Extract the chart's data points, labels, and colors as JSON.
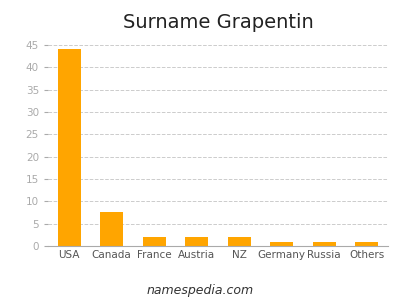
{
  "title": "Surname Grapentin",
  "categories": [
    "USA",
    "Canada",
    "France",
    "Austria",
    "NZ",
    "Germany",
    "Russia",
    "Others"
  ],
  "values": [
    44,
    7.5,
    2,
    2,
    2,
    1,
    1,
    1
  ],
  "bar_color": "#FFA500",
  "ylim": [
    0,
    47
  ],
  "yticks": [
    0,
    5,
    10,
    15,
    20,
    25,
    30,
    35,
    40,
    45
  ],
  "grid_color": "#cccccc",
  "background_color": "#ffffff",
  "title_fontsize": 14,
  "tick_fontsize": 7.5,
  "footer_text": "namespedia.com",
  "footer_fontsize": 9
}
